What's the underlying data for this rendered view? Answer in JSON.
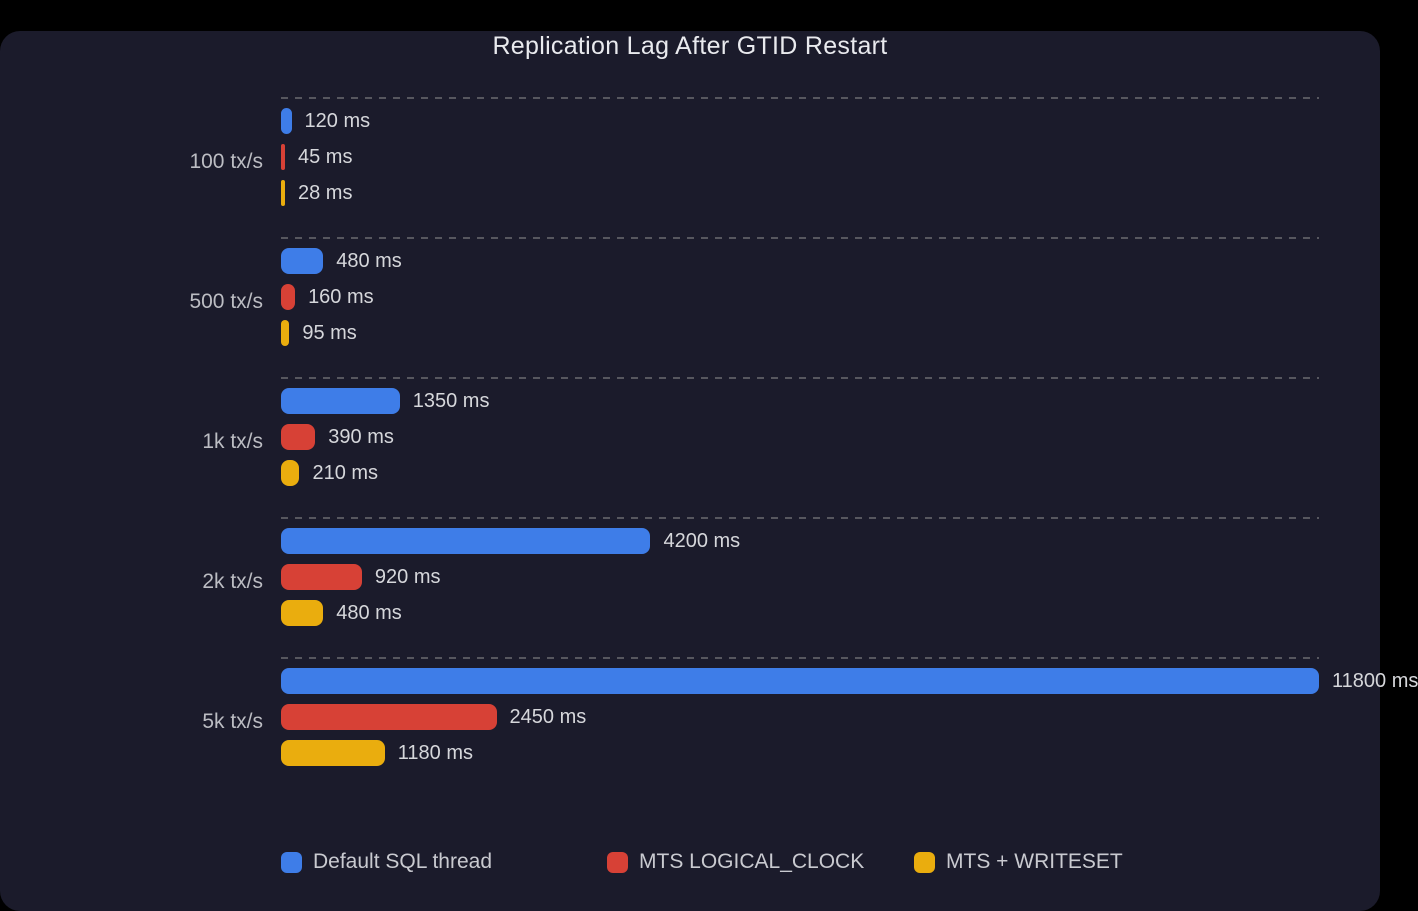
{
  "chart_data": {
    "type": "bar",
    "orientation": "horizontal",
    "title": "Replication Lag After GTID Restart",
    "categories": [
      "100 tx/s",
      "500 tx/s",
      "1k tx/s",
      "2k tx/s",
      "5k tx/s"
    ],
    "series": [
      {
        "name": "Default SQL thread",
        "color": "#3e7de8",
        "values": [
          120,
          480,
          1350,
          4200,
          11800
        ]
      },
      {
        "name": "MTS LOGICAL_CLOCK",
        "color": "#d74136",
        "values": [
          45,
          160,
          390,
          920,
          2450
        ]
      },
      {
        "name": "MTS + WRITESET",
        "color": "#eaad0e",
        "values": [
          28,
          95,
          210,
          480,
          1180
        ]
      }
    ],
    "value_label_suffix": " ms",
    "xlabel": "",
    "ylabel": "",
    "xlim": [
      0,
      11800
    ],
    "grid": "dashed horizontal separator above each category group",
    "legend_position": "bottom",
    "note": "value label of largest bar (11800 ms) is clipped at right edge"
  },
  "theme": {
    "outer_background": "#000000",
    "card_background": "#1b1b2b",
    "title_color": "#e9eaee",
    "category_label_color": "#bcbdc3",
    "value_label_color": "#d6d7db",
    "separator_color": "#57575f",
    "legend_text_color": "#c9cad0"
  }
}
